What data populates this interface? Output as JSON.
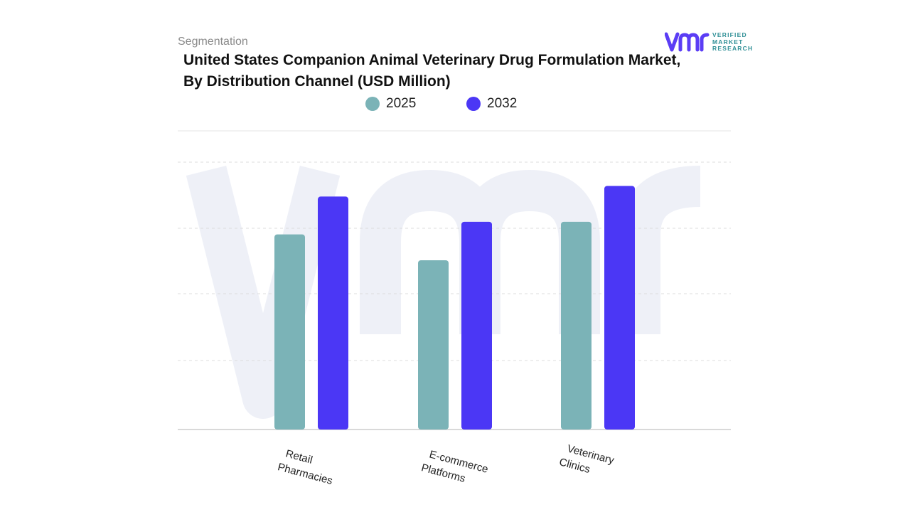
{
  "header": {
    "segmentation_label": "Segmentation",
    "title_line1": "United States Companion Animal Veterinary Drug Formulation Market,",
    "title_line2": "By Distribution Channel (USD Million)"
  },
  "logo": {
    "mark": "vmr",
    "text_line1": "VERIFIED",
    "text_line2": "MARKET",
    "text_line3": "RESEARCH",
    "mark_color": "#5b3df5",
    "text_color": "#2f8f96"
  },
  "chart_data": {
    "type": "bar",
    "title": "United States Companion Animal Veterinary Drug Formulation Market, By Distribution Channel (USD Million)",
    "categories": [
      "Retail Pharmacies",
      "E-commerce Platforms",
      "Veterinary Clinics"
    ],
    "category_lines": [
      [
        "Retail",
        "Pharmacies"
      ],
      [
        "E-commerce",
        "Platforms"
      ],
      [
        "Veterinary",
        "Clinics"
      ]
    ],
    "series": [
      {
        "name": "2025",
        "color": "#7bb3b7",
        "values": [
          2.94,
          2.55,
          3.13
        ]
      },
      {
        "name": "2032",
        "color": "#4b37f5",
        "values": [
          3.51,
          3.13,
          3.67
        ]
      }
    ],
    "xlabel": "",
    "ylabel": "",
    "ylim": [
      0,
      4.5
    ],
    "y_axis_visible": false,
    "grid": true,
    "legend_position": "top-center",
    "watermark": "vmr"
  }
}
